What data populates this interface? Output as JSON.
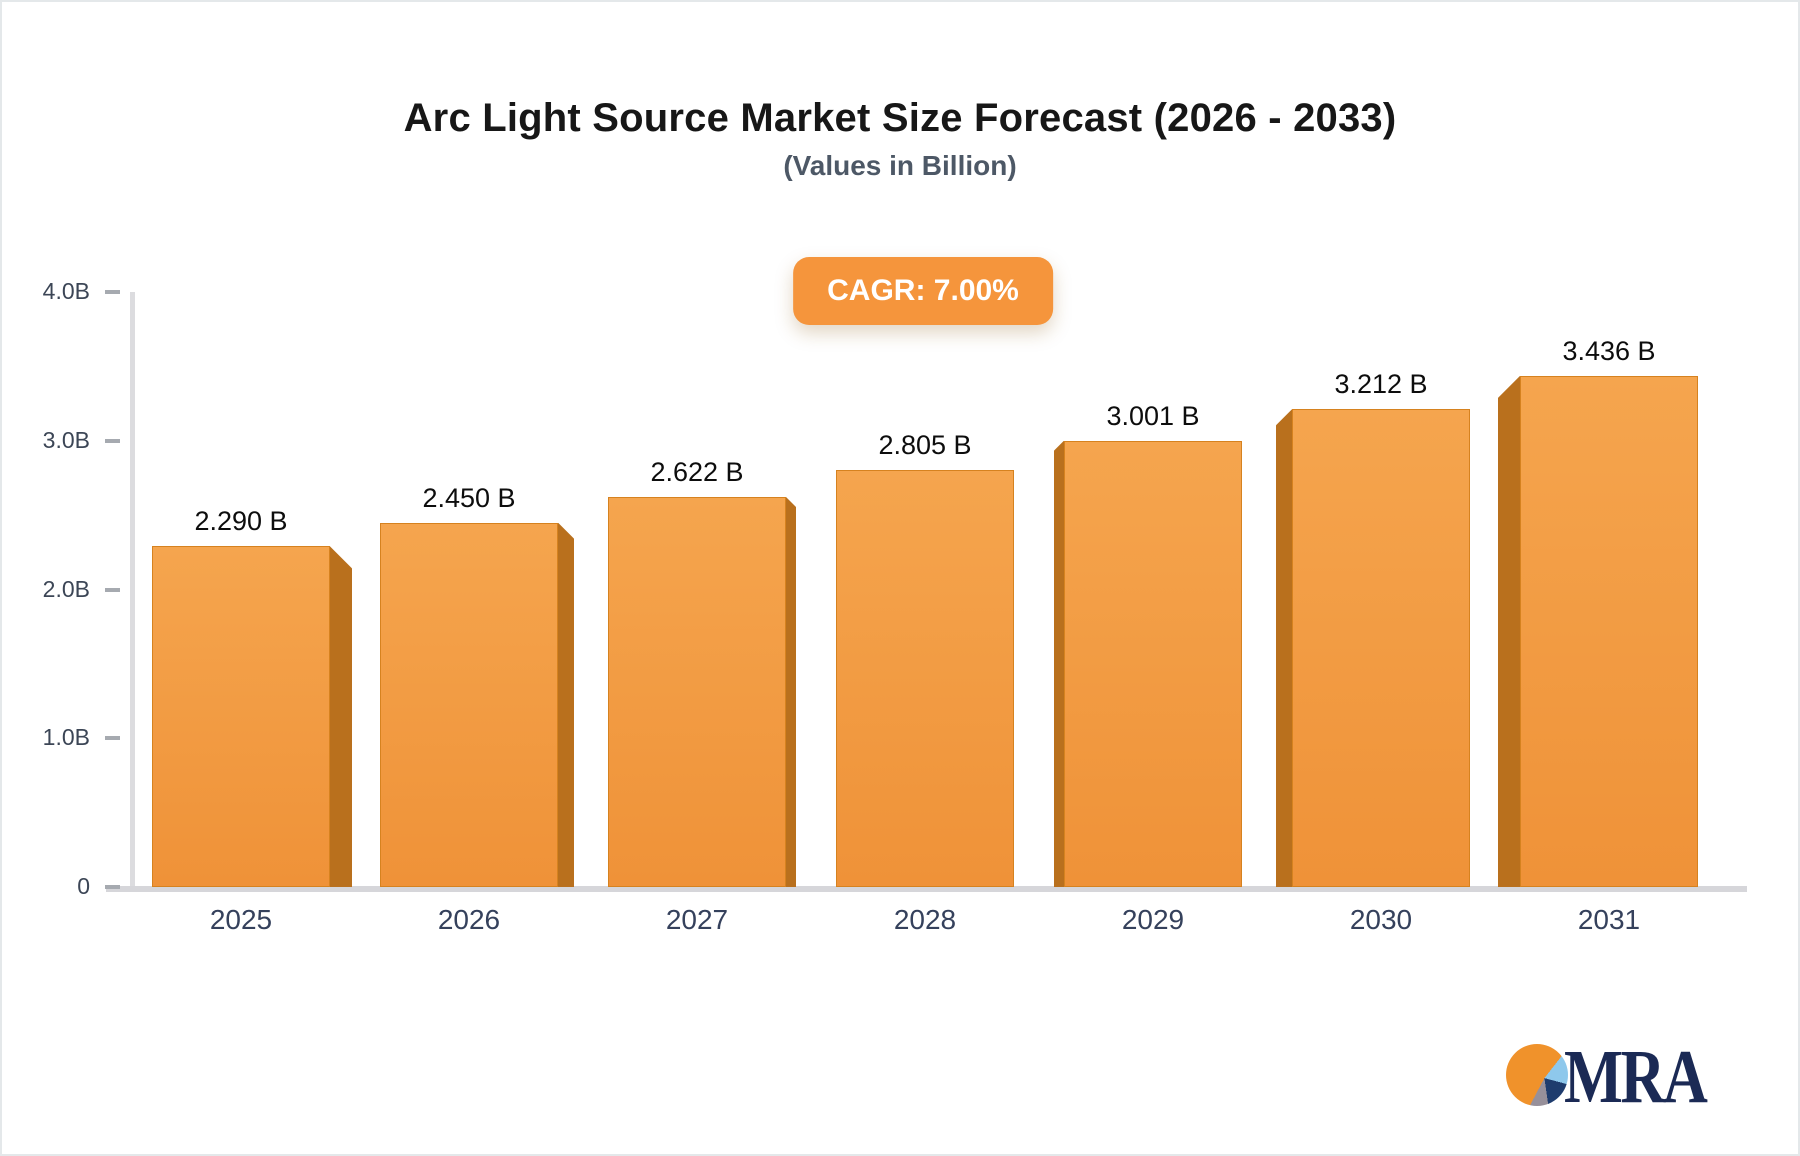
{
  "chart_data": {
    "type": "bar",
    "title": "Arc Light Source Market Size Forecast (2026 - 2033)",
    "subtitle": "(Values in Billion)",
    "cagr_badge": "CAGR: 7.00%",
    "categories": [
      "2025",
      "2026",
      "2027",
      "2028",
      "2029",
      "2030",
      "2031"
    ],
    "values": [
      2.29,
      2.45,
      2.622,
      2.805,
      3.001,
      3.212,
      3.436
    ],
    "value_labels": [
      "2.290 B",
      "2.450 B",
      "2.622 B",
      "2.805 B",
      "3.001 B",
      "3.212 B",
      "3.436 B"
    ],
    "xlabel": "",
    "ylabel": "",
    "ylim": [
      0,
      4
    ],
    "y_ticks": [
      {
        "value": 4.0,
        "label": "4.0B"
      },
      {
        "value": 3.0,
        "label": "3.0B"
      },
      {
        "value": 2.0,
        "label": "2.0B"
      },
      {
        "value": 1.0,
        "label": "1.0B"
      },
      {
        "value": 0.0,
        "label": "0"
      }
    ],
    "grid": false,
    "legend": null,
    "colors": {
      "bar_face_top": "#f5a54e",
      "bar_face_bottom": "#ef9238",
      "bar_border": "#d6821f",
      "bar_side": "#b9701d",
      "badge_background": "#f5953c",
      "badge_text": "#ffffff"
    }
  },
  "branding": {
    "logo_text": "MRA",
    "logo_text_color": "#1b2a55",
    "pie_colors": {
      "orange": "#f0922b",
      "light_blue": "#8ec8ec",
      "navy": "#1e3c6e",
      "gray": "#97909a"
    }
  }
}
